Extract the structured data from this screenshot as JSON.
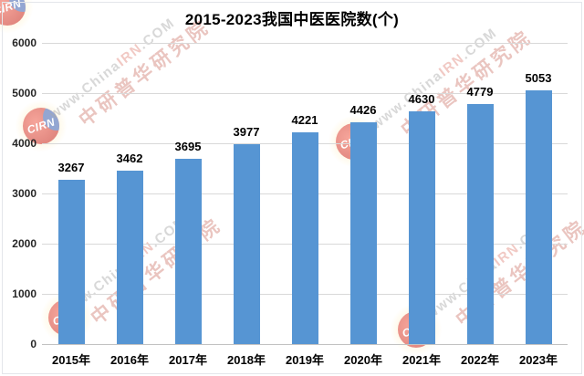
{
  "chart_data": {
    "type": "bar",
    "title": "2015-2023我国中医医院数(个)",
    "categories": [
      "2015年",
      "2016年",
      "2017年",
      "2018年",
      "2019年",
      "2020年",
      "2021年",
      "2022年",
      "2023年"
    ],
    "values": [
      3267,
      3462,
      3695,
      3977,
      4221,
      4426,
      4630,
      4779,
      5053
    ],
    "xlabel": "",
    "ylabel": "",
    "ylim": [
      0,
      6000
    ],
    "ytick_step": 1000,
    "ytick_labels": [
      "0",
      "1000",
      "2000",
      "3000",
      "4000",
      "5000",
      "6000"
    ],
    "grid": true,
    "legend": false,
    "value_labels": true,
    "bar_color": "#5695D3",
    "gridline_color": "#d9d9d9",
    "label_color": "#000000"
  },
  "watermark": {
    "url_p1": "www.China",
    "url_p2": "IRN",
    "url_p3": ".COM",
    "cn": "中研普华研究院",
    "logo_text": "CIRN"
  }
}
